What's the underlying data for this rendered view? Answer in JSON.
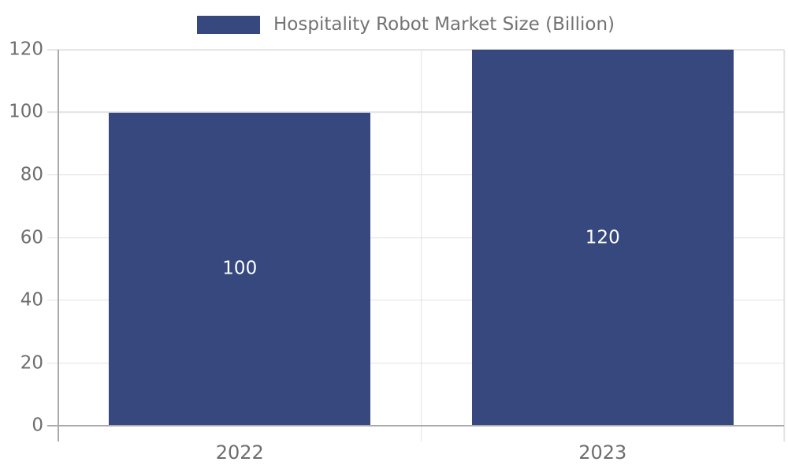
{
  "chart_data": {
    "type": "bar",
    "title": "Hospitality Robot Market Size (Billion)",
    "categories": [
      "2022",
      "2023"
    ],
    "values": [
      100,
      120
    ],
    "value_labels": [
      "100",
      "120"
    ],
    "series": [
      {
        "name": "Hospitality Robot Market Size (Billion)",
        "values": [
          100,
          120
        ]
      }
    ],
    "xlabel": "",
    "ylabel": "",
    "ylim": [
      0,
      120
    ],
    "yticks": [
      0,
      20,
      40,
      60,
      80,
      100,
      120
    ],
    "ytick_labels": [
      "0",
      "20",
      "40",
      "60",
      "80",
      "100",
      "120"
    ],
    "grid": true,
    "legend_position": "top",
    "legend": [
      "Hospitality Robot Market Size (Billion)"
    ]
  },
  "colors": {
    "bar": "#36487e",
    "gridline": "#e2e2e2",
    "axis": "#aaaaaa",
    "tick_text": "#6e6e6e",
    "legend_text": "#737373",
    "value_label_text": "#ffffff",
    "background": "#ffffff"
  }
}
